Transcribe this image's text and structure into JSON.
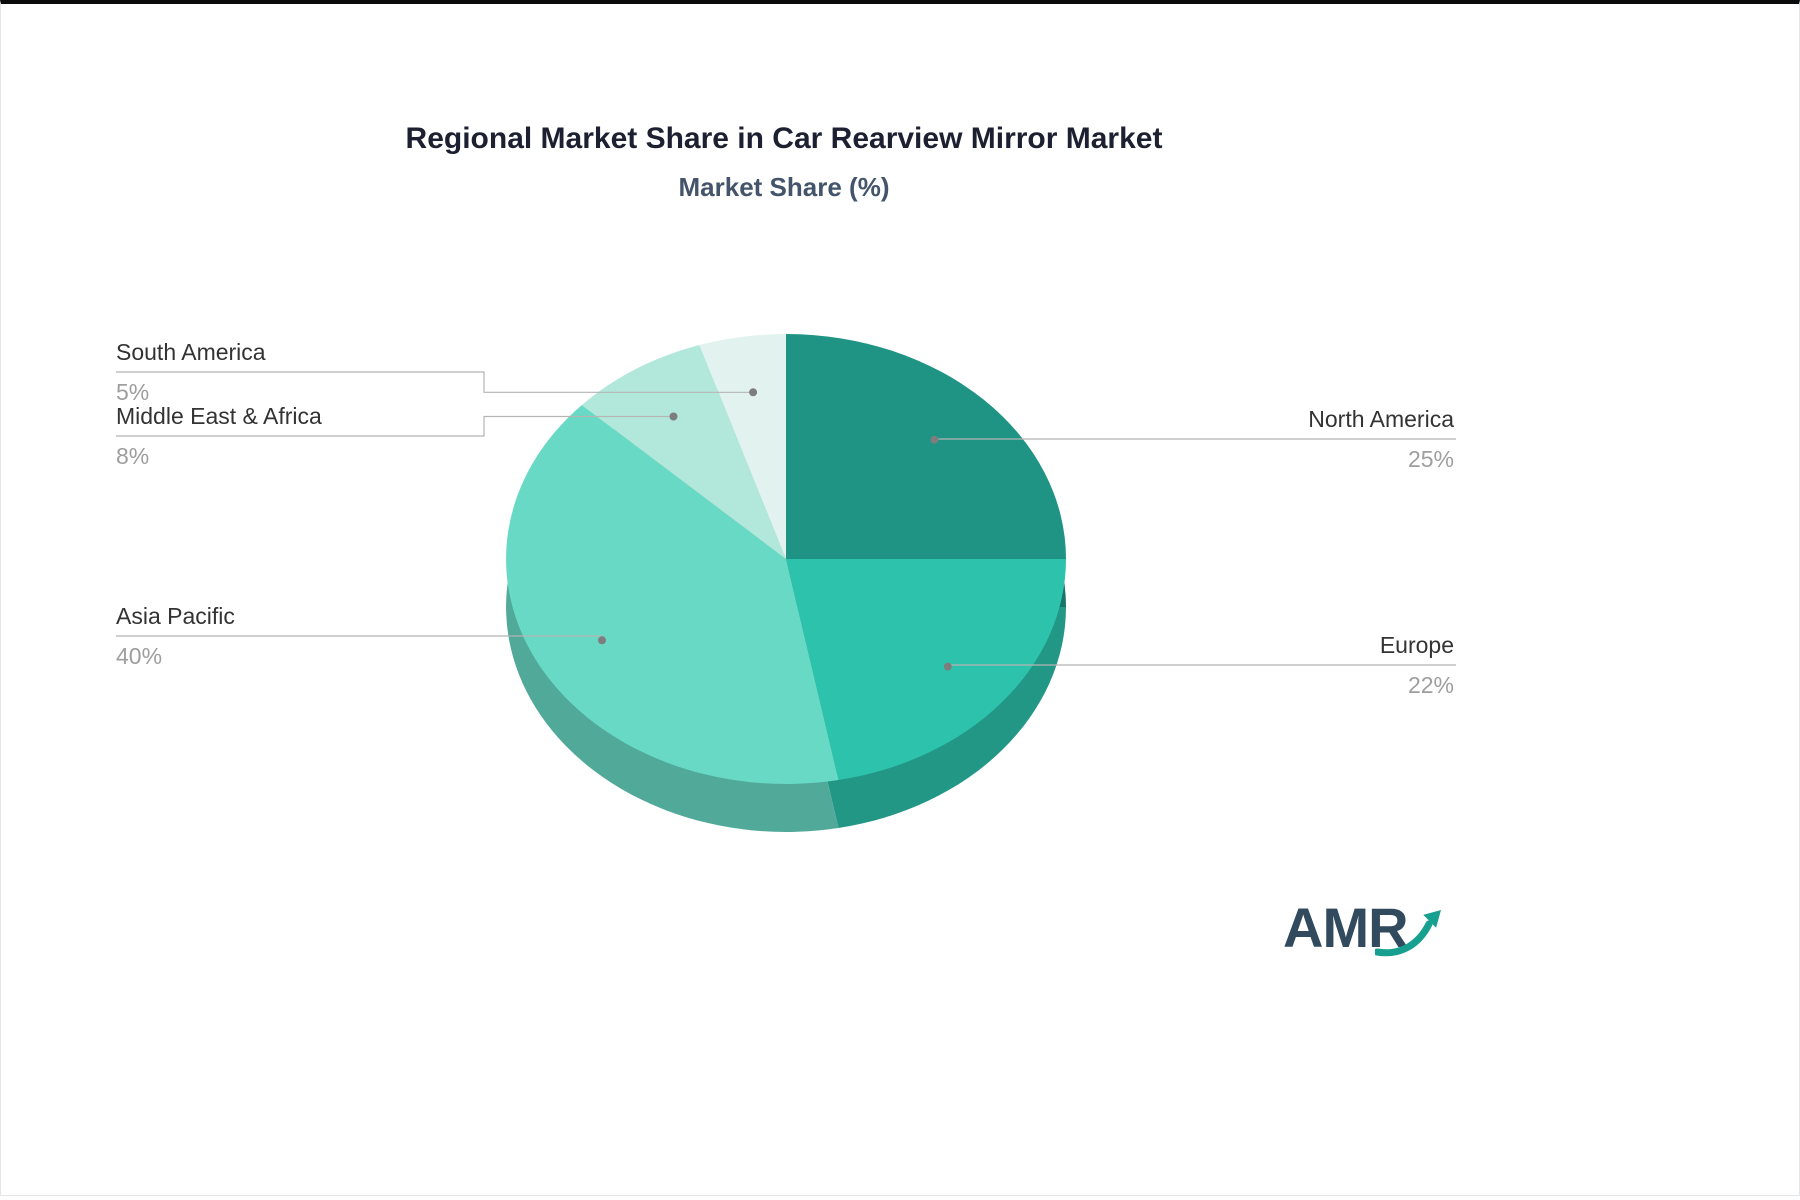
{
  "page": {
    "background": "#ffffff"
  },
  "chart_data": {
    "type": "pie",
    "title": "Regional Market Share in Car Rearview Mirror Market",
    "subtitle": "Market Share (%)",
    "unit": "%",
    "direction": "clockwise",
    "start_angle_deg": 0,
    "legend_position": "none",
    "labels_show_percent": true,
    "series": [
      {
        "name": "North America",
        "value": 25,
        "color": "#1f9485"
      },
      {
        "name": "Europe",
        "value": 22,
        "color": "#2dc2ac"
      },
      {
        "name": "Asia Pacific",
        "value": 40,
        "color": "#68d9c4"
      },
      {
        "name": "Middle East & Africa",
        "value": 8,
        "color": "#b2e8db"
      },
      {
        "name": "South America",
        "value": 5,
        "color": "#e2f3ef"
      }
    ]
  },
  "logo": {
    "text": "AMR",
    "text_color": "#324a5e",
    "arrow_color": "#17a08f"
  }
}
